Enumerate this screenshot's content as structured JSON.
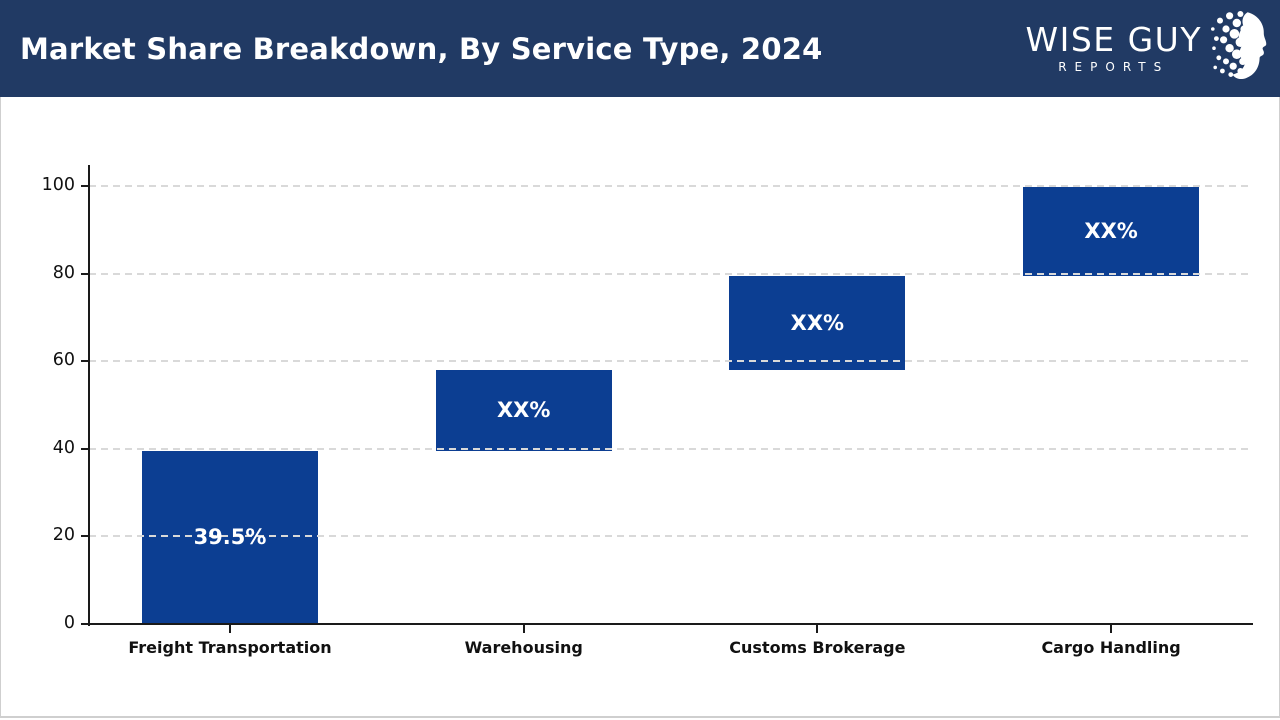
{
  "header": {
    "title": "Market Share Breakdown, By Service Type, 2024",
    "bg_color": "#213a64",
    "logo": {
      "line1": "WISE GUY",
      "line2": "REPORTS"
    }
  },
  "watermark": {
    "line1": "WISE GUY",
    "line2": "REPORTS"
  },
  "chart_data": {
    "type": "bar",
    "subtype": "waterfall-segments",
    "title": "Market Share Breakdown, By Service Type, 2024",
    "categories": [
      "Freight Transportation",
      "Warehousing",
      "Customs Brokerage",
      "Cargo Handling"
    ],
    "bars": [
      {
        "label": "Freight Transportation",
        "value_label": "39.5%",
        "start": 0,
        "end": 39.5
      },
      {
        "label": "Warehousing",
        "value_label": "XX%",
        "start": 39.5,
        "end": 58
      },
      {
        "label": "Customs Brokerage",
        "value_label": "XX%",
        "start": 58,
        "end": 79.5
      },
      {
        "label": "Cargo Handling",
        "value_label": "XX%",
        "start": 79.5,
        "end": 99.8
      }
    ],
    "y_ticks": [
      0,
      20,
      40,
      60,
      80,
      100
    ],
    "ylim": [
      0,
      105
    ],
    "xlabel": "",
    "ylabel": "",
    "legend": "none",
    "grid": "dashed-horizontal",
    "bar_color": "#0c3e92",
    "axis_color": "#1a1a1a",
    "grid_color": "#d9d9d9"
  }
}
